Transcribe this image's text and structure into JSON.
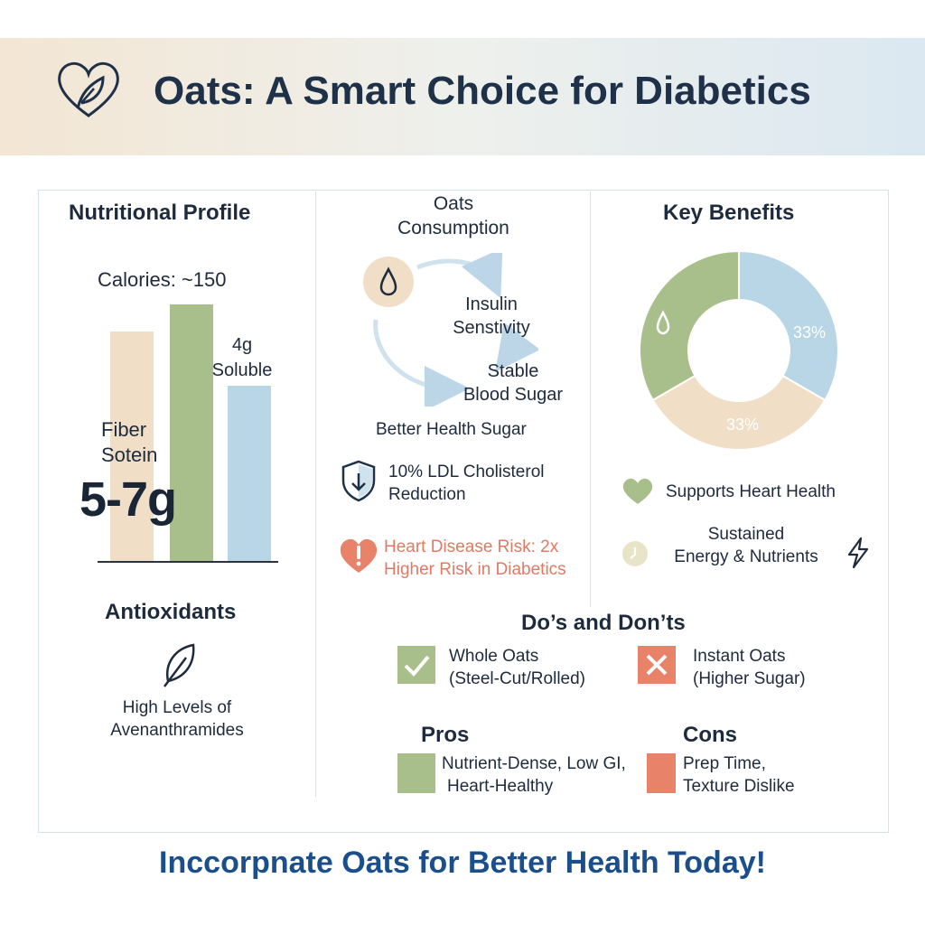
{
  "header": {
    "title": "Oats: A Smart Choice for Diabetics",
    "icon": "heart-leaf-icon"
  },
  "nutrition": {
    "heading": "Nutritional Profile",
    "calories": "Calories: ~150",
    "soluble": [
      "4g",
      "Soluble"
    ],
    "fiber_protein": [
      "Fiber",
      "Sotein"
    ],
    "fiber_amount": "5-7g"
  },
  "chart_data": {
    "type": "bar",
    "categories": [
      "",
      "",
      ""
    ],
    "values": [
      255,
      285,
      195
    ],
    "colors": [
      "#f0dfc6",
      "#a9bf8b",
      "#b8d6e6"
    ]
  },
  "antioxidants": {
    "heading": "Antioxidants",
    "text": [
      "High Levels of",
      "Avenanthramides"
    ],
    "icon": "leaf-icon"
  },
  "cycle": {
    "start": [
      "Oats",
      "Consumption"
    ],
    "insulin": [
      "Insulin",
      "Senstivity"
    ],
    "stable": [
      "Stable",
      "Blood Sugar"
    ],
    "better": "Better Health Sugar",
    "icon": "water-drop-icon"
  },
  "ldl": {
    "text": [
      "10% LDL Cholisterol",
      "Reduction"
    ],
    "icon": "shield-icon"
  },
  "heart_risk": {
    "text": [
      "Heart Disease Risk: 2x",
      "Higher Risk in Diabetics"
    ],
    "icon": "alert-heart-icon",
    "color": "#e07a63"
  },
  "benefits": {
    "heading": "Key Benefits",
    "donut": [
      {
        "label": "",
        "value": 33.3,
        "color": "#a9bf8b"
      },
      {
        "label": "33%",
        "value": 33.3,
        "color": "#b8d6e6"
      },
      {
        "label": "33%",
        "value": 33.3,
        "color": "#f0dfc6"
      }
    ],
    "heart_item": "Supports Heart Health",
    "energy_item": [
      "Sustained",
      "Energy & Nutrients"
    ]
  },
  "dos": {
    "heading": "Do’s and Don’ts",
    "do_item": [
      "Whole Oats",
      "(Steel-Cut/Rolled)"
    ],
    "dont_item": [
      "Instant Oats",
      "(Higher Sugar)"
    ]
  },
  "pros": {
    "heading": "Pros",
    "text": [
      "Nutrient-Dense, Low GI,",
      "Heart-Healthy"
    ],
    "color": "#a9bf8b"
  },
  "cons": {
    "heading": "Cons",
    "text": [
      "Prep Time,",
      "Texture Dislike"
    ],
    "color": "#e8836a"
  },
  "footer": "Inccorpnate Oats for Better Health Today!"
}
